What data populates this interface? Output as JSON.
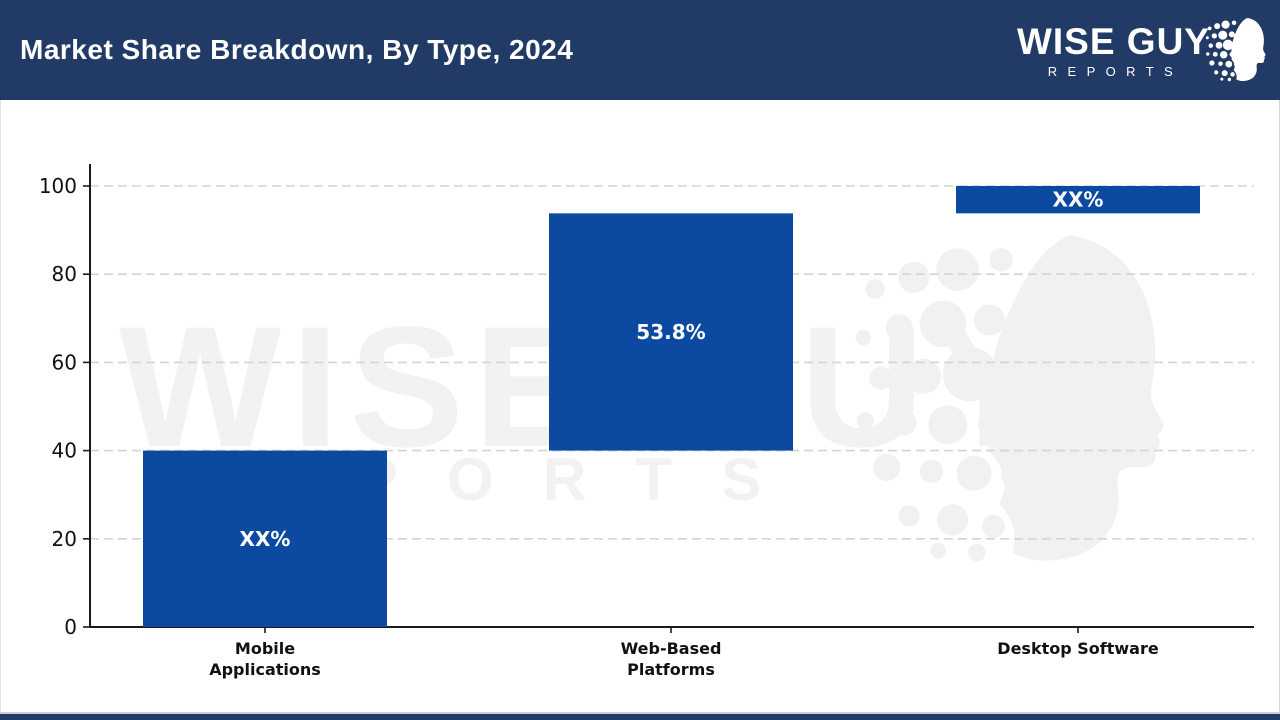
{
  "header": {
    "title": "Market Share Breakdown, By Type, 2024",
    "logo": {
      "wordmark": "WISE GUY",
      "sub": "REPORTS"
    }
  },
  "watermark": {
    "wordmark": "WISE GUY",
    "sub": "REPORTS"
  },
  "chart_data": {
    "type": "bar",
    "subtype": "waterfall",
    "title": "Market Share Breakdown, By Type, 2024",
    "categories": [
      "Mobile Applications",
      "Web-Based Platforms",
      "Desktop Software"
    ],
    "bars": [
      {
        "category": "Mobile Applications",
        "label_lines": [
          "Mobile",
          "Applications"
        ],
        "start": 0,
        "end": 40,
        "value_label": "XX%"
      },
      {
        "category": "Web-Based Platforms",
        "label_lines": [
          "Web-Based",
          "Platforms"
        ],
        "start": 40,
        "end": 93.8,
        "value_label": "53.8%"
      },
      {
        "category": "Desktop Software",
        "label_lines": [
          "Desktop Software"
        ],
        "start": 93.8,
        "end": 100,
        "value_label": "XX%"
      }
    ],
    "ylim": [
      0,
      100
    ],
    "yticks": [
      0,
      20,
      40,
      60,
      80,
      100
    ],
    "xlabel": "",
    "ylabel": "",
    "legend": "none",
    "grid": "horizontal-dashed",
    "bar_color": "#0b4aa0",
    "value_label_color": "#ffffff"
  },
  "colors": {
    "header_bg": "#213a66",
    "footer_bg": "#213a66",
    "grid_line": "#d4d4d4",
    "watermark": "#f2f2f2"
  }
}
